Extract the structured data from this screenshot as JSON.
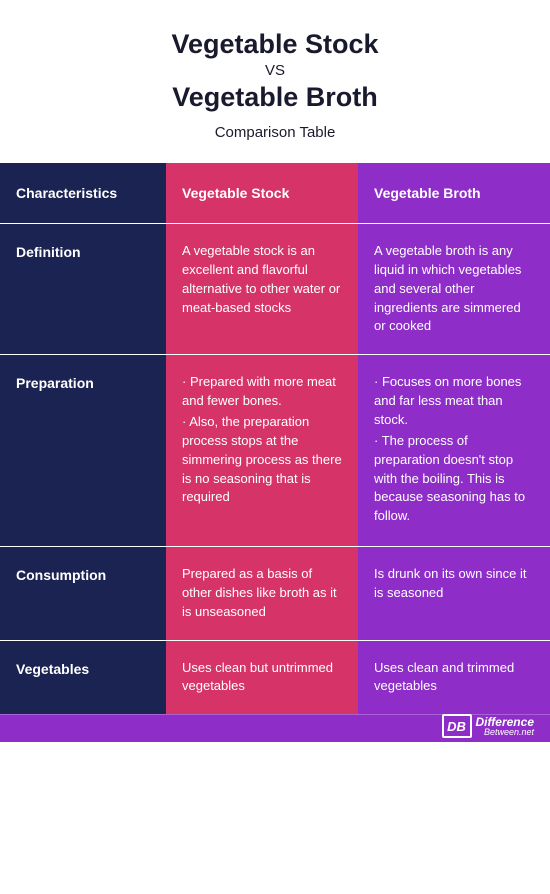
{
  "header": {
    "title1": "Vegetable Stock",
    "vs": "VS",
    "title2": "Vegetable Broth",
    "subtitle": "Comparison Table"
  },
  "columns": {
    "col1": "Characteristics",
    "col2": "Vegetable Stock",
    "col3": "Vegetable Broth"
  },
  "rows": {
    "definition": {
      "label": "Definition",
      "stock": "A vegetable stock is an excellent and flavorful alternative to other water or meat-based stocks",
      "broth": "A vegetable broth is any liquid in which vegetables and several other ingredients are simmered or cooked"
    },
    "preparation": {
      "label": "Preparation",
      "stock_b1": "· Prepared with more meat and fewer bones.",
      "stock_b2": "· Also, the preparation process stops at the simmering process as there is no seasoning that is required",
      "broth_b1": "· Focuses on more bones and far less meat than stock.",
      "broth_b2": "· The process of preparation doesn't stop with the boiling. This is because seasoning has to follow."
    },
    "consumption": {
      "label": "Consumption",
      "stock": "Prepared as a basis of other dishes like broth as it is unseasoned",
      "broth": "Is drunk on its own since it is seasoned"
    },
    "vegetables": {
      "label": "Vegetables",
      "stock": "Uses clean but untrimmed vegetables",
      "broth": "Uses clean and trimmed vegetables"
    }
  },
  "footer": {
    "db": "DB",
    "brand": "Difference",
    "domain": "Between.net"
  },
  "colors": {
    "col1_bg": "#1a2352",
    "col2_bg": "#d63369",
    "col3_bg": "#8e2dc8",
    "text": "#ffffff",
    "title": "#1a1a2e"
  }
}
